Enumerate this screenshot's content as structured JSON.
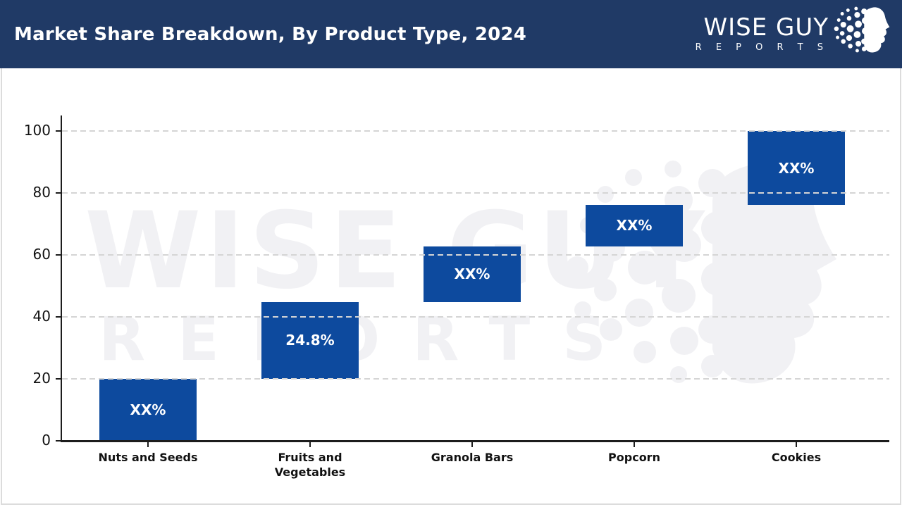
{
  "header": {
    "title": "Market Share Breakdown, By Product Type, 2024",
    "logo": {
      "line1": "WISE GUY",
      "line2": "R E P O R T S"
    }
  },
  "watermark": {
    "line1": "WISE GUY",
    "line2": "REPORTS"
  },
  "colors": {
    "header_bg": "#203a66",
    "bar": "#0d4a9e",
    "bar_label": "#ffffff",
    "grid": "#d5d5d5",
    "axis": "#1c1c1c",
    "tick_text": "#111111",
    "watermark": "#f1f1f4",
    "frame_border": "#dcdcdc"
  },
  "chart_data": {
    "type": "bar",
    "subtype": "waterfall-floating-segments",
    "title": "Market Share Breakdown, By Product Type, 2024",
    "categories": [
      "Nuts and Seeds",
      "Fruits and\nVegetables",
      "Granola Bars",
      "Popcorn",
      "Cookies"
    ],
    "segments": [
      {
        "category": "Nuts and Seeds",
        "start": 0,
        "end": 20,
        "label": "XX%"
      },
      {
        "category": "Fruits and Vegetables",
        "start": 20,
        "end": 44.8,
        "label": "24.8%"
      },
      {
        "category": "Granola Bars",
        "start": 44.8,
        "end": 62.8,
        "label": "XX%"
      },
      {
        "category": "Popcorn",
        "start": 62.8,
        "end": 76.1,
        "label": "XX%"
      },
      {
        "category": "Cookies",
        "start": 76.1,
        "end": 100,
        "label": "XX%"
      }
    ],
    "yticks": [
      0,
      20,
      40,
      60,
      80,
      100
    ],
    "ylim": [
      0,
      105
    ],
    "xlabel": "",
    "ylabel": "",
    "grid": "horizontal-dashed-over-bars",
    "legend": "none"
  }
}
